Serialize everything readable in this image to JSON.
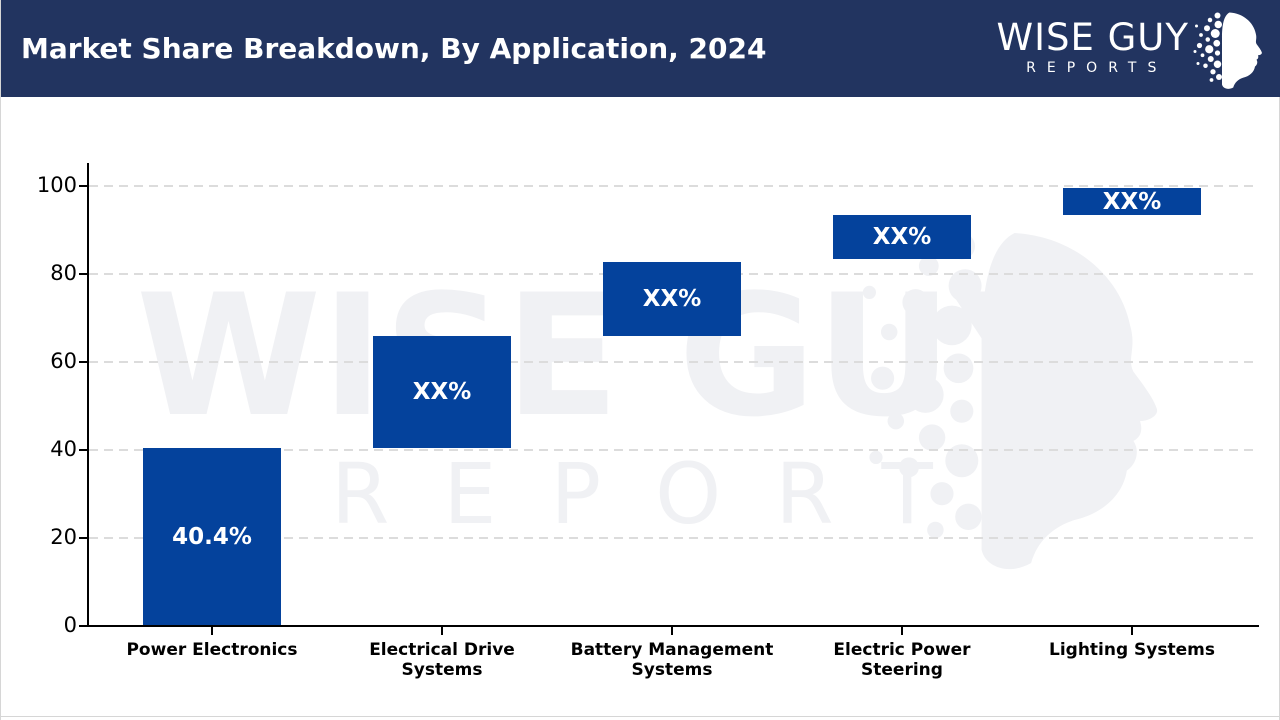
{
  "header": {
    "title": "Market Share Breakdown, By Application, 2024",
    "logo": {
      "brand": "WISE GUY",
      "sub": "REPORTS"
    }
  },
  "watermark": {
    "brand": "WISE GUY",
    "sub": "REPORTS"
  },
  "colors": {
    "header-bg": "#223460",
    "bar": "#04429c",
    "bar-label": "#ffffff",
    "grid": "#dcdcdc",
    "axis": "#000000",
    "watermark": "#f0f1f4"
  },
  "chart_data": {
    "type": "bar",
    "subtype": "waterfall",
    "title": "Market Share Breakdown, By Application, 2024",
    "unit": "%",
    "categories": [
      "Power Electronics",
      "Electrical Drive Systems",
      "Battery Management Systems",
      "Electric Power Steering",
      "Lighting Systems"
    ],
    "category_lines": [
      [
        "Power Electronics"
      ],
      [
        "Electrical Drive",
        "Systems"
      ],
      [
        "Battery Management",
        "Systems"
      ],
      [
        "Electric Power",
        "Steering"
      ],
      [
        "Lighting Systems"
      ]
    ],
    "segments": [
      {
        "category": "Power Electronics",
        "from": 0,
        "to": 40.4,
        "label": "40.4%"
      },
      {
        "category": "Electrical Drive Systems",
        "from": 40.5,
        "to": 66.0,
        "label": "XX%"
      },
      {
        "category": "Battery Management Systems",
        "from": 66.0,
        "to": 82.8,
        "label": "XX%"
      },
      {
        "category": "Electric Power Steering",
        "from": 83.3,
        "to": 93.4,
        "label": "XX%"
      },
      {
        "category": "Lighting Systems",
        "from": 93.4,
        "to": 99.5,
        "label": "XX%"
      }
    ],
    "yticks": [
      0,
      20,
      40,
      60,
      80,
      100
    ],
    "ylim": [
      0,
      105
    ],
    "grid": "dashed-horizontal",
    "legend": null
  }
}
